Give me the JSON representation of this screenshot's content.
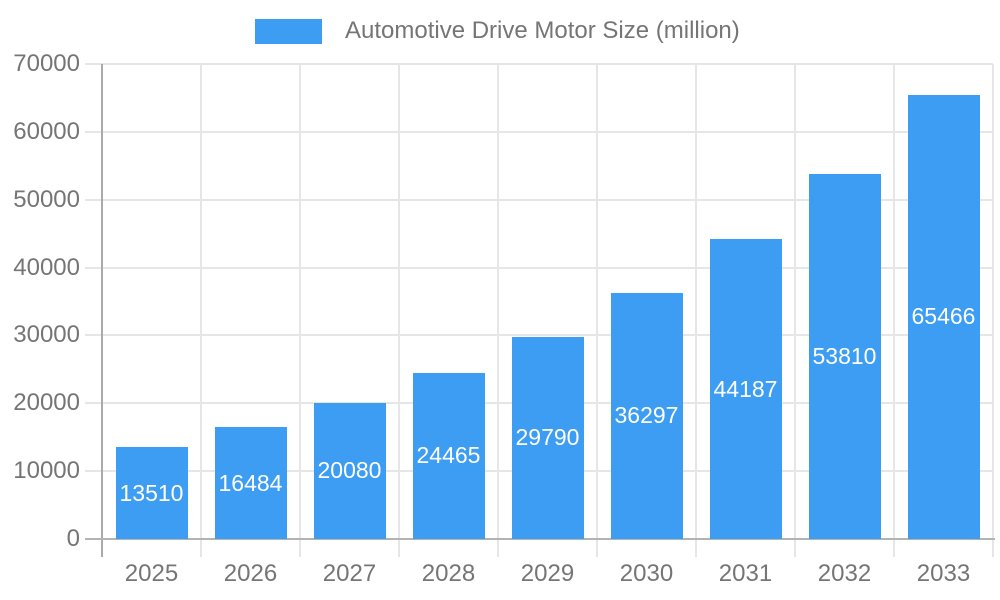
{
  "legend": {
    "label": "Automotive Drive Motor Size (million)"
  },
  "chart_data": {
    "type": "bar",
    "title": "Automotive Drive Motor Size (million)",
    "categories": [
      "2025",
      "2026",
      "2027",
      "2028",
      "2029",
      "2030",
      "2031",
      "2032",
      "2033"
    ],
    "values": [
      13510,
      16484,
      20080,
      24465,
      29790,
      36297,
      44187,
      53810,
      65466
    ],
    "xlabel": "",
    "ylabel": "",
    "ylim": [
      0,
      70000
    ],
    "ytick_step": 10000,
    "yticks": [
      "0",
      "10000",
      "20000",
      "30000",
      "40000",
      "50000",
      "60000",
      "70000"
    ],
    "grid": true,
    "legend_position": "top",
    "data_labels": "inside-center",
    "bar_color": "#3d9df3",
    "bar_label_color": "#ffffff",
    "axis_text_color": "#757575",
    "grid_color": "#e6e6e6",
    "axis_line_color": "#aaaaaa",
    "baseline_color": "#b3b3b3",
    "background_color": "#ffffff"
  }
}
